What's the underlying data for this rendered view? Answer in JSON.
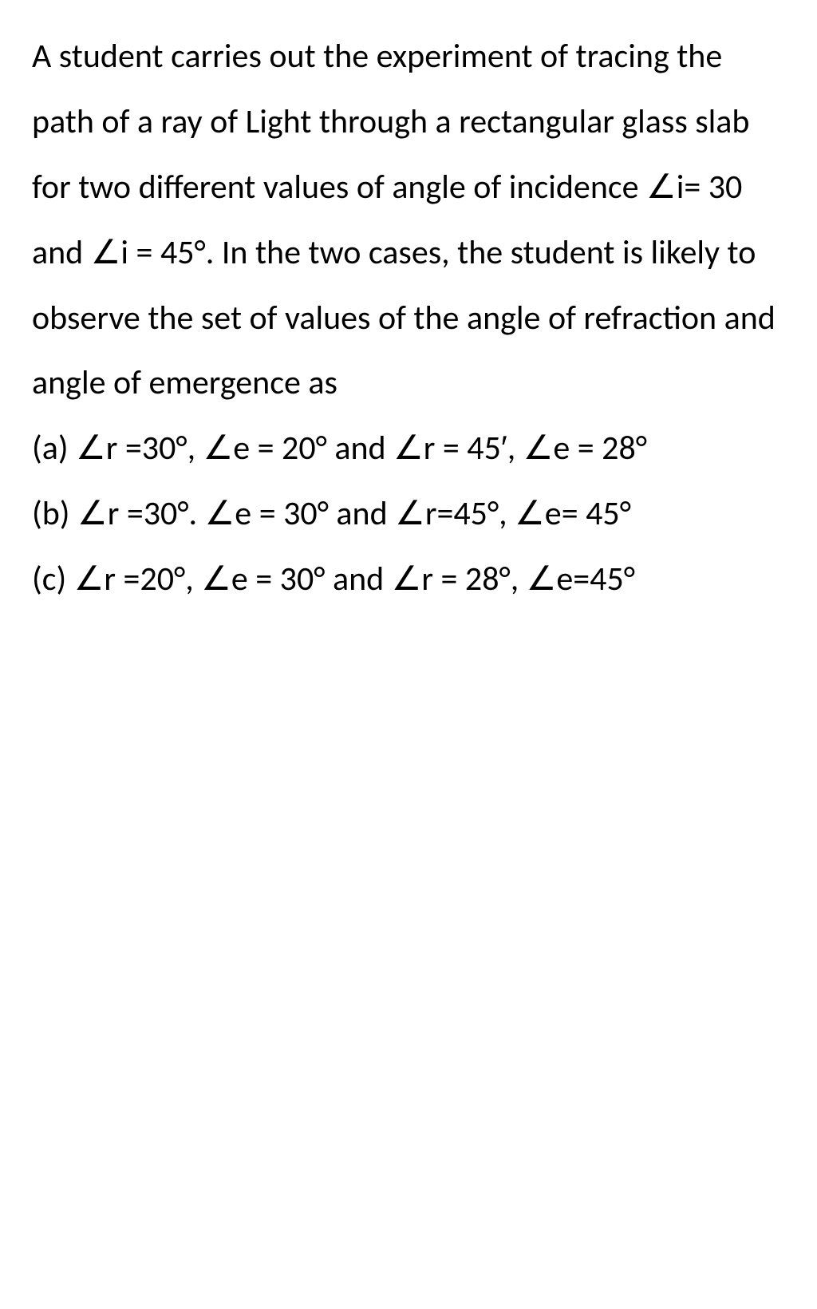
{
  "question": {
    "text": "A student carries out the experiment of tracing the path of a ray of Light through a rectangular glass slab for two different values of angle of incidence ∠i= 30 and ∠i = 45°. In the two cases, the student is likely to observe the set of values of the angle of refraction and angle of emergence as",
    "text_color": "#000000",
    "background_color": "#ffffff",
    "fontsize": 42,
    "line_height": 1.95
  },
  "options": [
    {
      "label": "(a)",
      "text": "∠r =30°, ∠e = 20° and ∠r = 45′, ∠e = 28°"
    },
    {
      "label": "(b)",
      "text": "∠r =30°. ∠e = 30° and ∠r=45°, ∠e= 45°"
    },
    {
      "label": "(c)",
      "text": "∠r =20°, ∠e = 30° and ∠r = 28°, ∠e=45°"
    }
  ]
}
